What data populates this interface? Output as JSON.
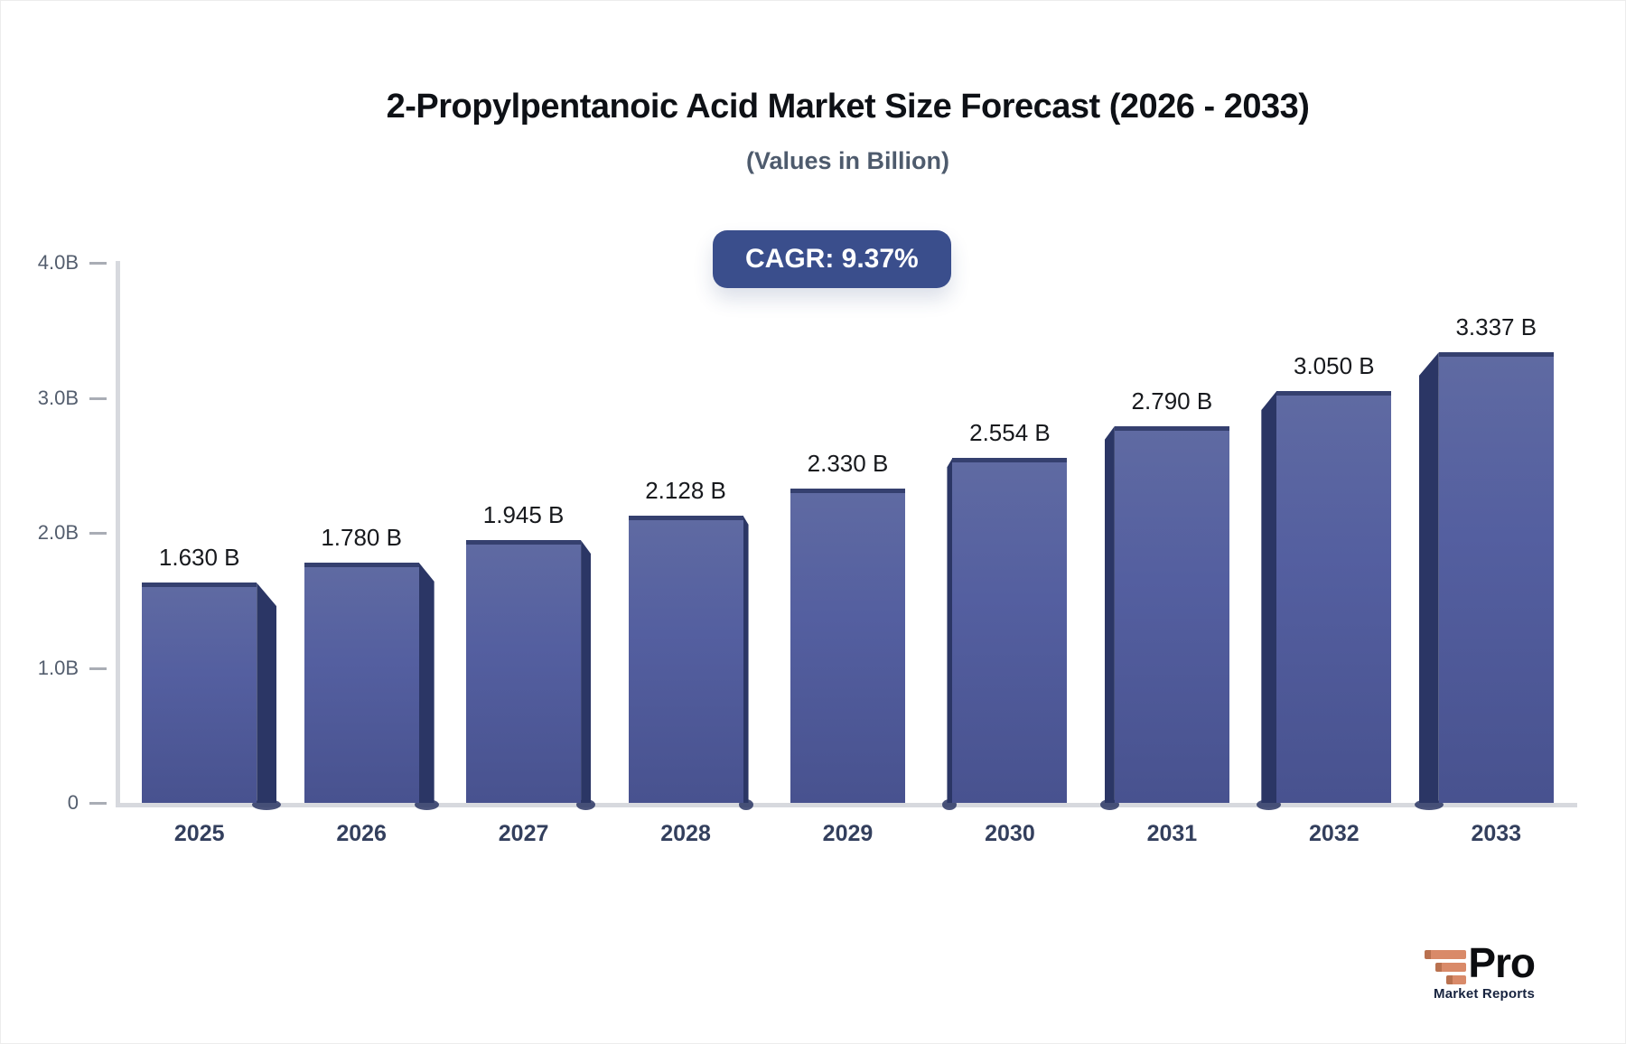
{
  "header": {
    "title": "2-Propylpentanoic Acid Market Size Forecast (2026 - 2033)",
    "subtitle": "(Values in Billion)"
  },
  "cagr_badge": {
    "label": "CAGR: 9.37%",
    "bg_color": "#3a4e8c",
    "text_color": "#ffffff"
  },
  "chart_data": {
    "type": "bar",
    "title": "2-Propylpentanoic Acid Market Size Forecast (2026 - 2033)",
    "subtitle": "(Values in Billion)",
    "cagr": "9.37%",
    "categories": [
      "2025",
      "2026",
      "2027",
      "2028",
      "2029",
      "2030",
      "2031",
      "2032",
      "2033"
    ],
    "values": [
      1.63,
      1.78,
      1.945,
      2.128,
      2.33,
      2.554,
      2.79,
      3.05,
      3.337
    ],
    "value_labels": [
      "1.630 B",
      "1.780 B",
      "1.945 B",
      "2.128 B",
      "2.330 B",
      "2.554 B",
      "2.790 B",
      "3.050 B",
      "3.337 B"
    ],
    "unit": "Billion",
    "xlabel": "",
    "ylabel": "",
    "ylim": [
      0,
      4.0
    ],
    "y_ticks": [
      {
        "value": 4.0,
        "label": "4.0B"
      },
      {
        "value": 3.0,
        "label": "3.0B"
      },
      {
        "value": 2.0,
        "label": "2.0B"
      },
      {
        "value": 1.0,
        "label": "1.0B"
      },
      {
        "value": 0.0,
        "label": "0"
      }
    ],
    "grid": false,
    "legend": false,
    "style": "3d-perspective-bars",
    "bar_face_top_color": "#5f6aa2",
    "bar_face_bottom_color": "#48528f",
    "bar_side_color": "#2b3665",
    "bar_top_edge_color": "#35406f",
    "axis_line_color": "#d7d9de",
    "tick_label_color": "#545e6e",
    "x_label_color": "#333f5d",
    "value_label_color": "#17191d"
  },
  "logo": {
    "brand": "Pro",
    "tagline": "Market Reports",
    "accent_color": "#d98a69"
  }
}
